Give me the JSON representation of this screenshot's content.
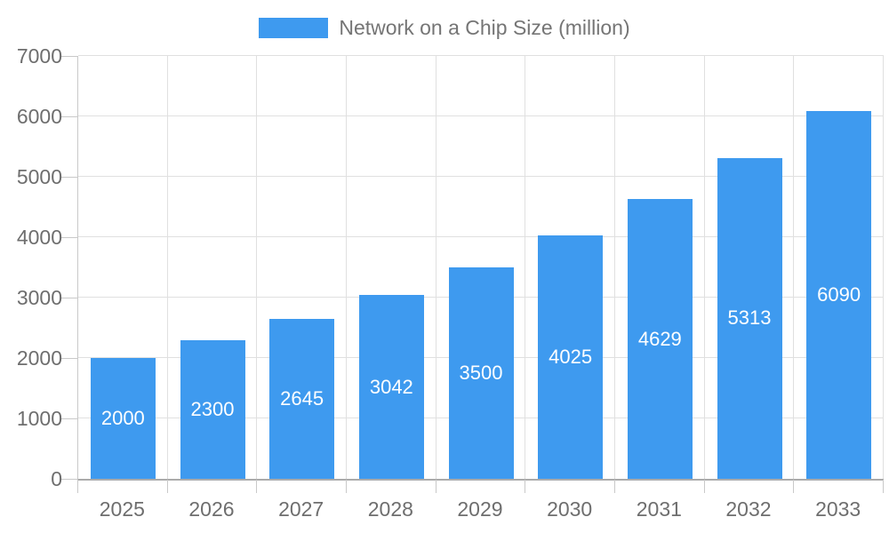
{
  "chart_data": {
    "type": "bar",
    "title": "Network on a Chip Size (million)",
    "categories": [
      "2025",
      "2026",
      "2027",
      "2028",
      "2029",
      "2030",
      "2031",
      "2032",
      "2033"
    ],
    "values": [
      2000,
      2300,
      2645,
      3042,
      3500,
      4025,
      4629,
      5313,
      6090
    ],
    "series": [
      {
        "name": "Network on a Chip Size (million)",
        "values": [
          2000,
          2300,
          2645,
          3042,
          3500,
          4025,
          4629,
          5313,
          6090
        ]
      }
    ],
    "xlabel": "",
    "ylabel": "",
    "ylim": [
      0,
      7000
    ],
    "yticks": [
      0,
      1000,
      2000,
      3000,
      4000,
      5000,
      6000,
      7000
    ],
    "grid": true,
    "legend_position": "top",
    "bar_value_labels": true
  },
  "legend": {
    "label": "Network on a Chip Size (million)"
  },
  "colors": {
    "bar": "#3E9AEF",
    "bar_label_text": "#FFFFFF",
    "grid": "#E0E0E0",
    "axis_line": "#ABABAB",
    "tick_line": "#C9C9C9",
    "axis_text": "#6E6E6E",
    "legend_text": "#757575",
    "background": "#FFFFFF"
  }
}
